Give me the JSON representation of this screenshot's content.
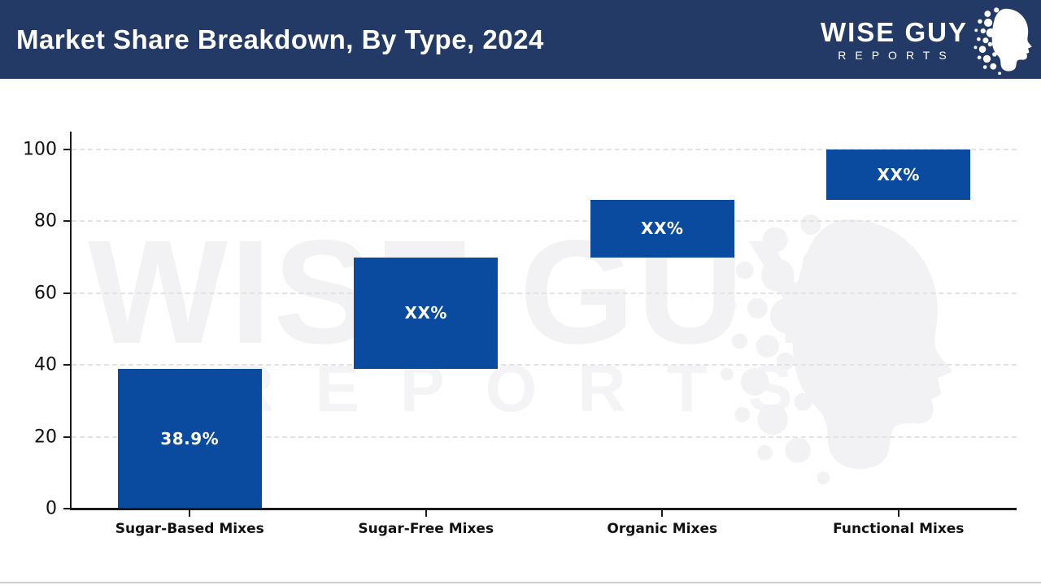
{
  "header": {
    "title": "Market Share Breakdown, By Type, 2024",
    "bg_color": "#233a66",
    "logo": {
      "line1": "WISE GUY",
      "line2": "REPORTS"
    }
  },
  "watermark": {
    "line1": "WISE GUY",
    "line2": "REPORTS"
  },
  "chart_data": {
    "type": "bar",
    "subtype": "waterfall",
    "title": "Market Share Breakdown, By Type, 2024",
    "categories": [
      "Sugar-Based Mixes",
      "Sugar-Free Mixes",
      "Organic Mixes",
      "Functional Mixes"
    ],
    "series": [
      {
        "name": "Market Share",
        "segments": [
          {
            "category": "Sugar-Based Mixes",
            "start": 0,
            "end": 38.9,
            "label": "38.9%"
          },
          {
            "category": "Sugar-Free Mixes",
            "start": 38.9,
            "end": 70,
            "label": "XX%"
          },
          {
            "category": "Organic Mixes",
            "start": 70,
            "end": 86,
            "label": "XX%"
          },
          {
            "category": "Functional Mixes",
            "start": 86,
            "end": 100,
            "label": "XX%"
          }
        ]
      }
    ],
    "xlabel": "",
    "ylabel": "",
    "ylim": [
      0,
      105
    ],
    "yticks": [
      0,
      20,
      40,
      60,
      80,
      100
    ],
    "grid": "horizontal-dashed",
    "legend": "none",
    "bar_color": "#0a4a9f",
    "value_label_color": "#ffffff"
  }
}
